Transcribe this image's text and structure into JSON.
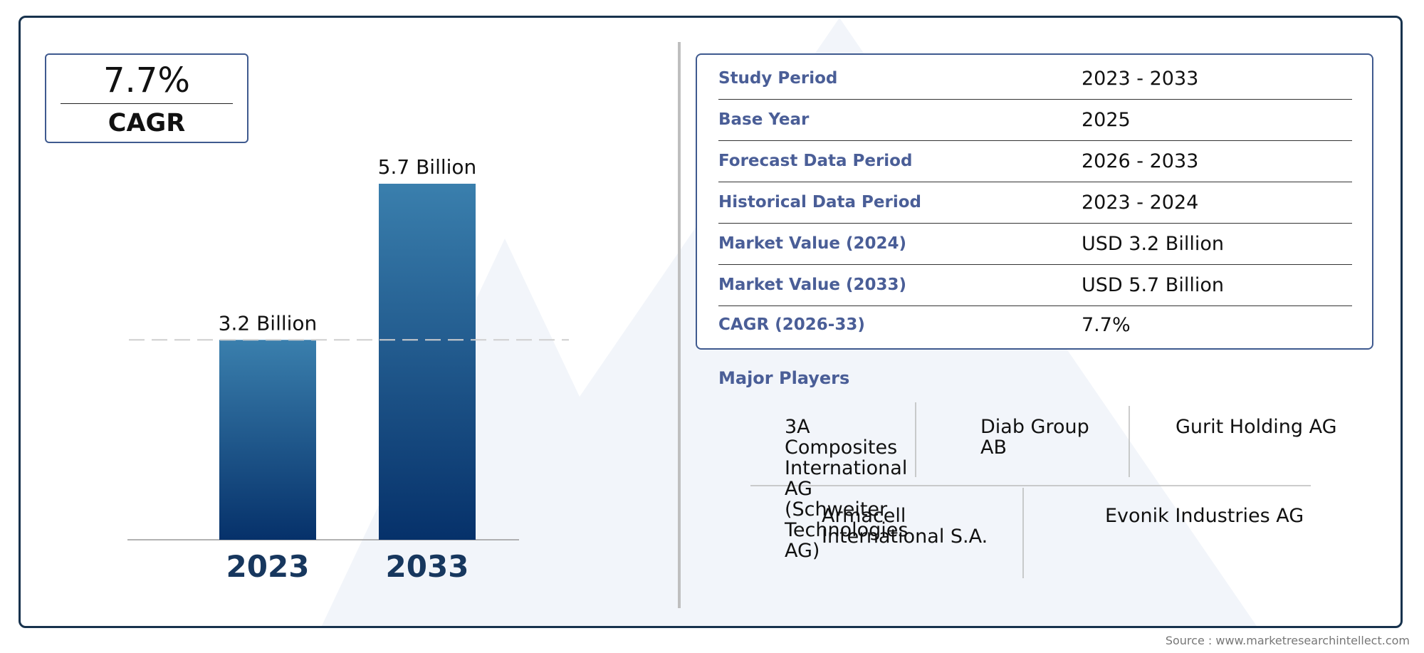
{
  "cagr": {
    "value": "7.7%",
    "label": "CAGR"
  },
  "chart_data": {
    "type": "bar",
    "categories": [
      "2023",
      "2033"
    ],
    "values": [
      3.2,
      5.7
    ],
    "data_labels": [
      "3.2 Billion",
      "5.7 Billion"
    ],
    "title": "",
    "xlabel": "",
    "ylabel": "",
    "ylim": [
      0,
      5.7
    ],
    "grid": false,
    "reference_line_at": 3.2,
    "colors": {
      "bar_top": "#3a7fad",
      "bar_bottom": "#06316a",
      "year_label": "#17375e"
    }
  },
  "info_table": [
    {
      "key": "Study Period",
      "value": "2023 - 2033"
    },
    {
      "key": "Base Year",
      "value": "2025"
    },
    {
      "key": "Forecast Data Period",
      "value": "2026 - 2033"
    },
    {
      "key": "Historical Data Period",
      "value": "2023 - 2024"
    },
    {
      "key": "Market Value (2024)",
      "value": "USD 3.2 Billion"
    },
    {
      "key": "Market Value (2033)",
      "value": "USD 5.7 Billion"
    },
    {
      "key": "CAGR (2026-33)",
      "value": "7.7%"
    }
  ],
  "major_players": {
    "title": "Major Players",
    "row1": [
      "3A Composites International AG (Schweiter Technologies AG)",
      "Diab Group AB",
      "Gurit Holding AG"
    ],
    "row2": [
      "Armacell International S.A.",
      "Evonik Industries AG"
    ]
  },
  "source": "Source : www.marketresearchintellect.com",
  "colors": {
    "border": "#17324d",
    "accent": "#4a5e97",
    "watermark": "#f1f4f9"
  }
}
